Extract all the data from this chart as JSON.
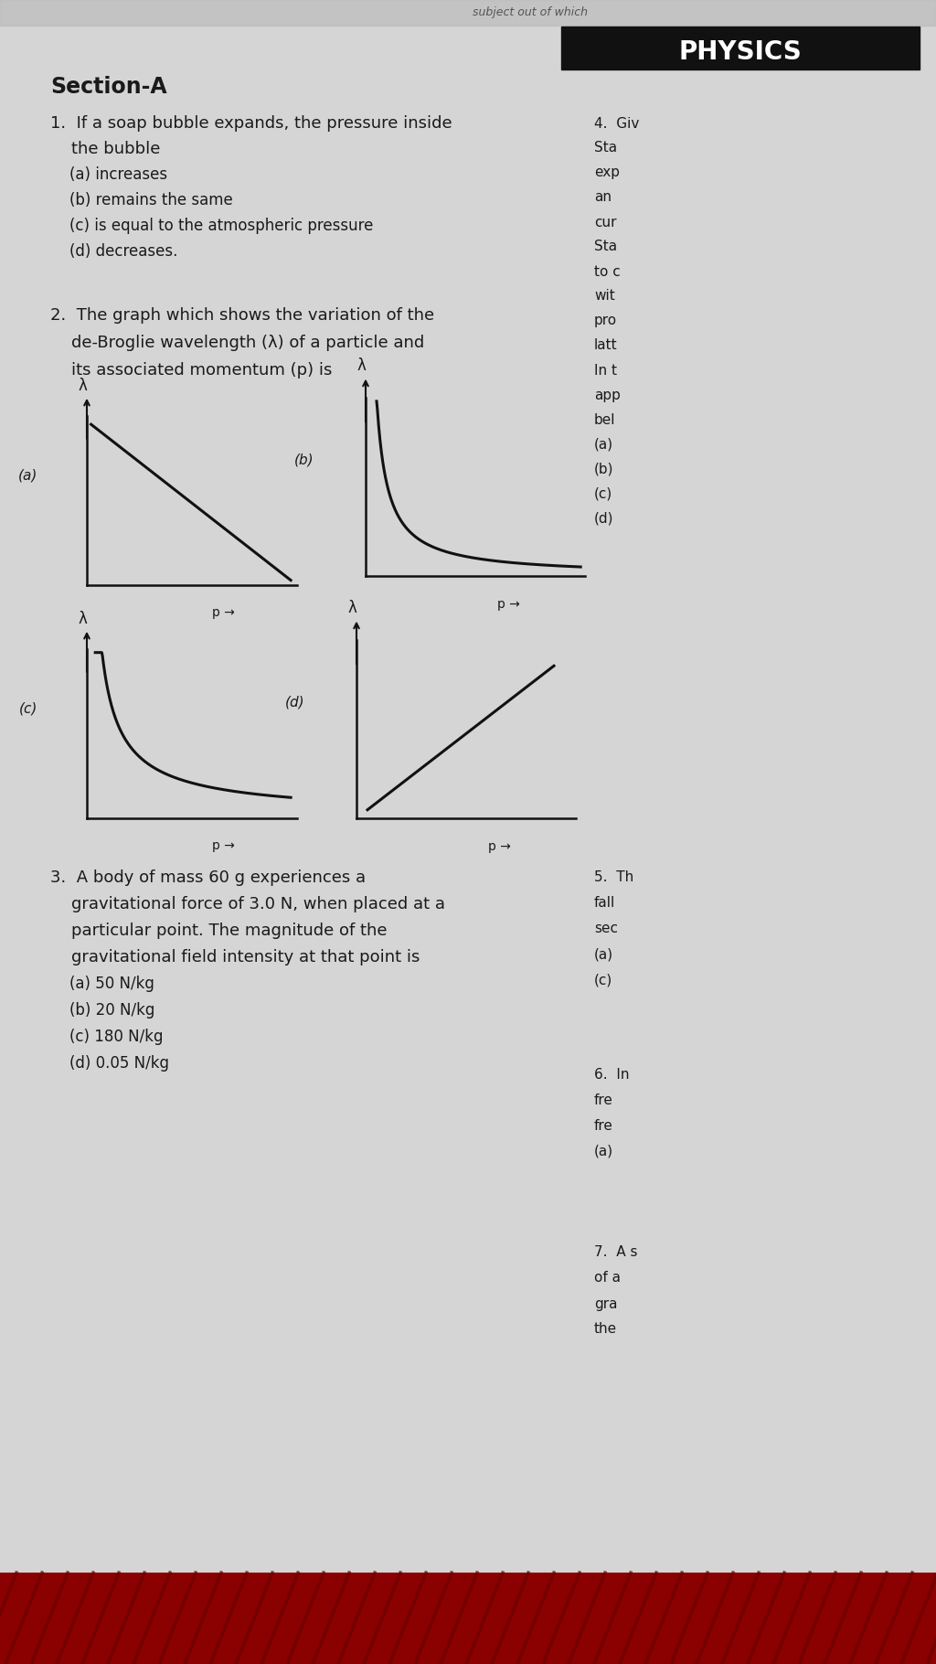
{
  "bg_color": "#d5d5d5",
  "text_color": "#1a1a1a",
  "curve_color": "#111111",
  "axes_color": "#111111",
  "graph_bg": "none",
  "subplot_labels": [
    "(a)",
    "(b)",
    "(c)",
    "(d)"
  ],
  "top_strip_color": "#b8b8b8",
  "physics_bg": "#111111",
  "physics_text": "PHYSICS",
  "section_title": "Section-A",
  "q1_lines": [
    "1.  If a soap bubble expands, the pressure inside",
    "    the bubble",
    "    (a) increases",
    "    (b) remains the same",
    "    (c) is equal to the atmospheric pressure",
    "    (d) decreases."
  ],
  "q2_lines": [
    "2.  The graph which shows the variation of the",
    "    de-Broglie wavelength (λ) of a particle and",
    "    its associated momentum (p) is"
  ],
  "q3_lines": [
    "3.  A body of mass 60 g experiences a",
    "    gravitational force of 3.0 N, when placed at a",
    "    particular point. The magnitude of the",
    "    gravitational field intensity at that point is",
    "    (a) 50 N/kg",
    "    (b) 20 N/kg",
    "    (c) 180 N/kg",
    "    (d) 0.05 N/kg"
  ],
  "right_col": [
    "4.  Giv",
    "Sta",
    "exp",
    "an",
    "cur",
    "Sta",
    "to c",
    "wit",
    "pro",
    "latt",
    "In t",
    "app",
    "bel",
    "(a)",
    "(b)",
    "(c)",
    "(d)"
  ],
  "right_col2": [
    "5.  Th",
    "fall",
    "sec",
    "(a)",
    "(c)"
  ],
  "right_col3": [
    "6.  In",
    "fre",
    "fre",
    "(a)"
  ],
  "right_col4": [
    "7.  A s",
    "of a",
    "gra",
    "the"
  ],
  "bottom_strip_color": "#8B0000"
}
